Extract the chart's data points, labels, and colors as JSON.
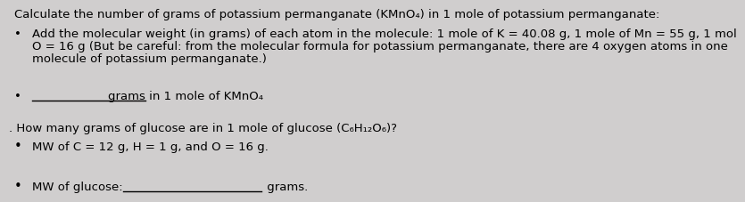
{
  "bg_color": "#d0cece",
  "title": "Calculate the number of grams of potassium permanganate (KMnO₄) in 1 mole of potassium permanganate:",
  "bullet1_line1": "Add the molecular weight (in grams) of each atom in the molecule: 1 mole of K = 40.08 g, 1 mole of Mn = 55 g, 1 mol",
  "bullet1_line2": "O = 16 g (But be careful: from the molecular formula for potassium permanganate, there are 4 oxygen atoms in one",
  "bullet1_line3": "molecule of potassium permanganate.)",
  "bullet2": "―――――――――――――― grams in 1 mole of KMnO₄",
  "section2": ". How many grams of glucose are in 1 mole of glucose (C₆H₁₂O₆)?",
  "bullet3": "MW of C = 12 g, H = 1 g, and O = 16 g.",
  "bullet4_pre": "MW of glucose: ",
  "bullet4_line": "――――――――――――――――",
  "bullet4_post": " grams.",
  "text_color": "#000000",
  "fs": 9.5
}
